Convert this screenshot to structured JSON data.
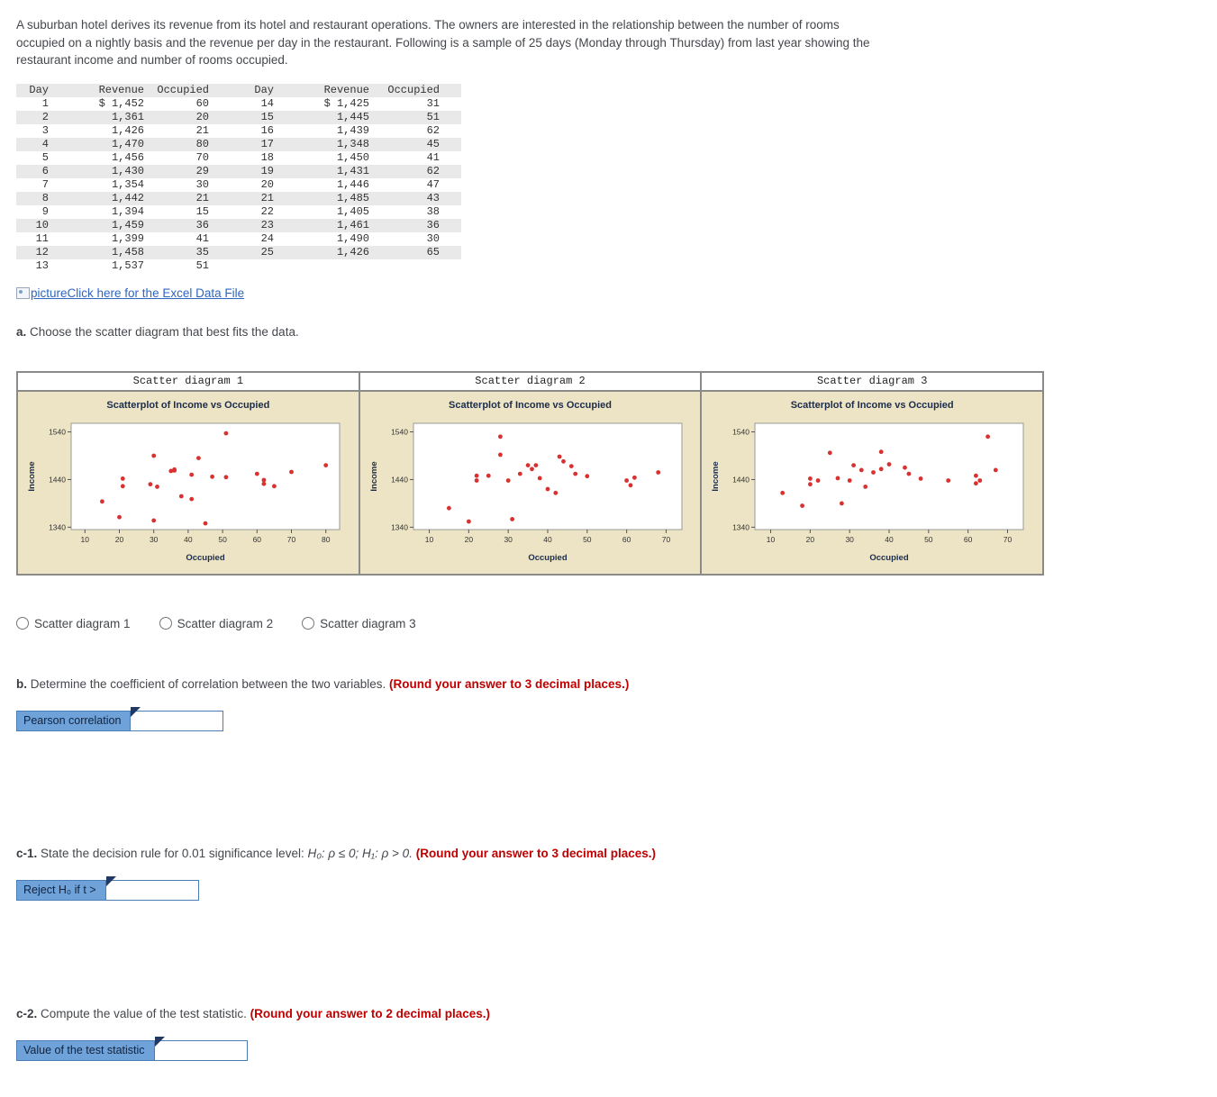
{
  "intro": "A suburban hotel derives its revenue from its hotel and restaurant operations. The owners are interested in the relationship between the number of rooms occupied on a nightly basis and the revenue per day in the restaurant. Following is a sample of 25 days (Monday through Thursday) from last year showing the restaurant income and number of rooms occupied.",
  "table": {
    "headers": [
      "Day",
      "Revenue",
      "Occupied",
      "Day",
      "Revenue",
      "Occupied"
    ],
    "rows": [
      [
        "1",
        "$ 1,452",
        "60",
        "14",
        "$ 1,425",
        "31"
      ],
      [
        "2",
        "1,361",
        "20",
        "15",
        "1,445",
        "51"
      ],
      [
        "3",
        "1,426",
        "21",
        "16",
        "1,439",
        "62"
      ],
      [
        "4",
        "1,470",
        "80",
        "17",
        "1,348",
        "45"
      ],
      [
        "5",
        "1,456",
        "70",
        "18",
        "1,450",
        "41"
      ],
      [
        "6",
        "1,430",
        "29",
        "19",
        "1,431",
        "62"
      ],
      [
        "7",
        "1,354",
        "30",
        "20",
        "1,446",
        "47"
      ],
      [
        "8",
        "1,442",
        "21",
        "21",
        "1,485",
        "43"
      ],
      [
        "9",
        "1,394",
        "15",
        "22",
        "1,405",
        "38"
      ],
      [
        "10",
        "1,459",
        "36",
        "23",
        "1,461",
        "36"
      ],
      [
        "11",
        "1,399",
        "41",
        "24",
        "1,490",
        "30"
      ],
      [
        "12",
        "1,458",
        "35",
        "25",
        "1,426",
        "65"
      ],
      [
        "13",
        "1,537",
        "51",
        "",
        "",
        ""
      ]
    ]
  },
  "excel_link": {
    "alt": "picture",
    "label": "Click here for the Excel Data File"
  },
  "section_a": {
    "prefix": "a.",
    "text": "Choose the scatter diagram that best fits the data."
  },
  "chart_data": [
    {
      "type": "scatter",
      "name": "Scatter diagram 1",
      "title": "Scatterplot of Income vs Occupied",
      "xlabel": "Occupied",
      "ylabel": "Income",
      "x_ticks": [
        10,
        20,
        30,
        40,
        50,
        60,
        70,
        80
      ],
      "y_ticks": [
        1340,
        1440,
        1540
      ],
      "xlim": [
        6,
        84
      ],
      "ylim": [
        1335,
        1558
      ],
      "points": [
        [
          60,
          1452
        ],
        [
          20,
          1361
        ],
        [
          21,
          1426
        ],
        [
          80,
          1470
        ],
        [
          70,
          1456
        ],
        [
          29,
          1430
        ],
        [
          30,
          1354
        ],
        [
          21,
          1442
        ],
        [
          15,
          1394
        ],
        [
          36,
          1459
        ],
        [
          41,
          1399
        ],
        [
          35,
          1458
        ],
        [
          51,
          1537
        ],
        [
          31,
          1425
        ],
        [
          51,
          1445
        ],
        [
          62,
          1439
        ],
        [
          45,
          1348
        ],
        [
          41,
          1450
        ],
        [
          62,
          1431
        ],
        [
          47,
          1446
        ],
        [
          43,
          1485
        ],
        [
          38,
          1405
        ],
        [
          36,
          1461
        ],
        [
          30,
          1490
        ],
        [
          65,
          1426
        ]
      ]
    },
    {
      "type": "scatter",
      "name": "Scatter diagram 2",
      "title": "Scatterplot of Income vs Occupied",
      "xlabel": "Occupied",
      "ylabel": "Income",
      "x_ticks": [
        10,
        20,
        30,
        40,
        50,
        60,
        70
      ],
      "y_ticks": [
        1340,
        1440,
        1540
      ],
      "xlim": [
        6,
        74
      ],
      "ylim": [
        1335,
        1558
      ],
      "points": [
        [
          15,
          1380
        ],
        [
          20,
          1352
        ],
        [
          22,
          1438
        ],
        [
          22,
          1448
        ],
        [
          25,
          1448
        ],
        [
          28,
          1530
        ],
        [
          28,
          1492
        ],
        [
          30,
          1438
        ],
        [
          31,
          1357
        ],
        [
          33,
          1452
        ],
        [
          35,
          1470
        ],
        [
          36,
          1462
        ],
        [
          37,
          1470
        ],
        [
          38,
          1443
        ],
        [
          40,
          1420
        ],
        [
          42,
          1412
        ],
        [
          43,
          1488
        ],
        [
          44,
          1478
        ],
        [
          46,
          1468
        ],
        [
          47,
          1452
        ],
        [
          50,
          1447
        ],
        [
          60,
          1438
        ],
        [
          61,
          1428
        ],
        [
          62,
          1444
        ],
        [
          68,
          1455
        ]
      ]
    },
    {
      "type": "scatter",
      "name": "Scatter diagram 3",
      "title": "Scatterplot of Income vs Occupied",
      "xlabel": "Occupied",
      "ylabel": "Income",
      "x_ticks": [
        10,
        20,
        30,
        40,
        50,
        60,
        70
      ],
      "y_ticks": [
        1340,
        1440,
        1540
      ],
      "xlim": [
        6,
        74
      ],
      "ylim": [
        1335,
        1558
      ],
      "points": [
        [
          13,
          1412
        ],
        [
          18,
          1385
        ],
        [
          20,
          1442
        ],
        [
          20,
          1430
        ],
        [
          22,
          1438
        ],
        [
          25,
          1496
        ],
        [
          27,
          1443
        ],
        [
          28,
          1390
        ],
        [
          30,
          1438
        ],
        [
          31,
          1470
        ],
        [
          33,
          1460
        ],
        [
          34,
          1425
        ],
        [
          36,
          1455
        ],
        [
          38,
          1462
        ],
        [
          38,
          1498
        ],
        [
          40,
          1472
        ],
        [
          44,
          1465
        ],
        [
          45,
          1452
        ],
        [
          48,
          1442
        ],
        [
          55,
          1438
        ],
        [
          62,
          1448
        ],
        [
          62,
          1432
        ],
        [
          63,
          1438
        ],
        [
          65,
          1530
        ],
        [
          67,
          1460
        ]
      ]
    }
  ],
  "radios": [
    {
      "label": "Scatter diagram 1"
    },
    {
      "label": "Scatter diagram 2"
    },
    {
      "label": "Scatter diagram 3"
    }
  ],
  "section_b": {
    "prefix": "b.",
    "text": "Determine the coefficient of correlation between the two variables.",
    "note": "(Round your answer to 3 decimal places.)"
  },
  "answer_b": {
    "label": "Pearson correlation",
    "value": ""
  },
  "section_c1": {
    "prefix": "c-1.",
    "text": "State the decision rule for 0.01 significance level:",
    "math": "H₀: ρ ≤ 0; H₁: ρ > 0.",
    "note": "(Round your answer to 3 decimal places.)"
  },
  "answer_c1": {
    "label": "Reject H₀ if t >",
    "value": ""
  },
  "section_c2": {
    "prefix": "c-2.",
    "text": "Compute the value of the test statistic.",
    "note": "(Round your answer to 2 decimal places.)"
  },
  "answer_c2": {
    "label": "Value of the test statistic",
    "value": ""
  }
}
